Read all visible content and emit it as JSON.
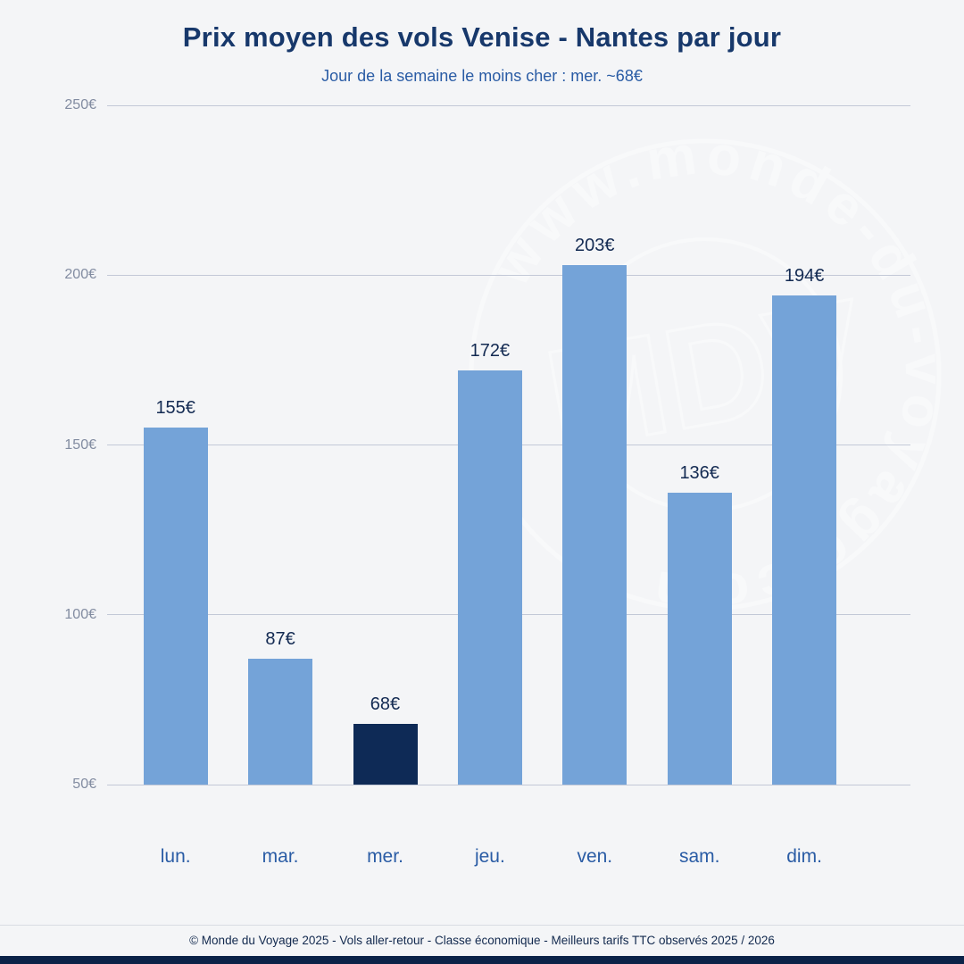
{
  "chart_data": {
    "type": "bar",
    "title": "Prix moyen des vols Venise - Nantes par jour",
    "subtitle": "Jour de la semaine le moins cher : mer. ~68€",
    "categories": [
      "lun.",
      "mar.",
      "mer.",
      "jeu.",
      "ven.",
      "sam.",
      "dim."
    ],
    "values": [
      155,
      87,
      68,
      172,
      203,
      136,
      194
    ],
    "value_suffix": "€",
    "yticks": [
      250,
      200,
      150,
      100,
      50
    ],
    "ytick_suffix": "€",
    "ylim": [
      50,
      250
    ],
    "grid": true,
    "legend": "none",
    "bar_color": "#74a3d8",
    "highlight_color": "#0e2a56",
    "highlight_category": "mer."
  },
  "watermark": {
    "ring_text": "www.monde-du-voyage.com",
    "center_text": "MDV"
  },
  "footer": {
    "text": "© Monde du Voyage 2025 - Vols aller-retour - Classe économique - Meilleurs tarifs TTC observés 2025 / 2026"
  }
}
